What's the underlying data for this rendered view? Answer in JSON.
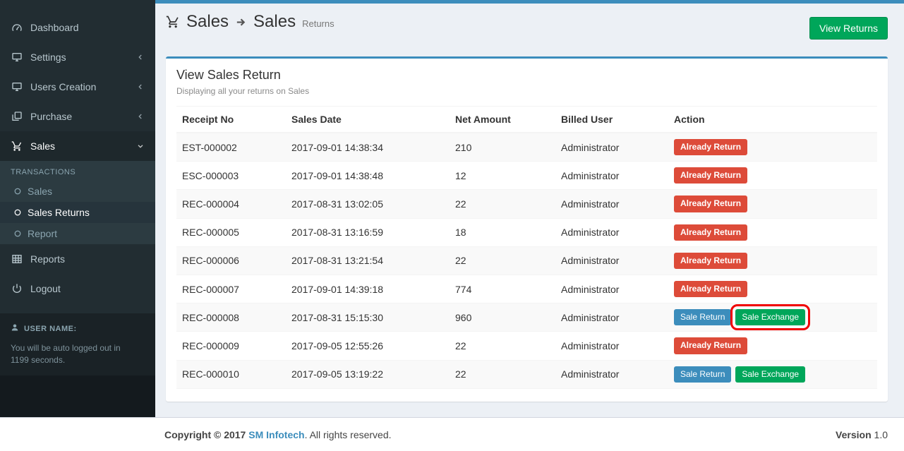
{
  "sidebar": {
    "items": [
      {
        "label": "Dashboard"
      },
      {
        "label": "Settings"
      },
      {
        "label": "Users Creation"
      },
      {
        "label": "Purchase"
      },
      {
        "label": "Sales"
      }
    ],
    "section_label": "TRANSACTIONS",
    "sub_items": [
      {
        "label": "Sales"
      },
      {
        "label": "Sales Returns"
      },
      {
        "label": "Report"
      }
    ],
    "extra_items": [
      {
        "label": "Reports"
      },
      {
        "label": "Logout"
      }
    ],
    "user_label": "USER NAME:",
    "auto_logout_notice": "You will be auto logged out in 1199 seconds."
  },
  "header": {
    "module": "Sales",
    "page": "Sales",
    "page_small": "Returns",
    "view_returns_label": "View Returns"
  },
  "panel": {
    "title": "View Sales Return",
    "subtitle": "Displaying all your returns on Sales"
  },
  "table": {
    "headers": [
      "Receipt No",
      "Sales Date",
      "Net Amount",
      "Billed User",
      "Action"
    ],
    "rows": [
      {
        "receipt_no": "EST-000002",
        "sales_date": "2017-09-01 14:38:34",
        "net_amount": "210",
        "billed_user": "Administrator",
        "actions": [
          {
            "label": "Already Return",
            "style": "danger"
          }
        ]
      },
      {
        "receipt_no": "ESC-000003",
        "sales_date": "2017-09-01 14:38:48",
        "net_amount": "12",
        "billed_user": "Administrator",
        "actions": [
          {
            "label": "Already Return",
            "style": "danger"
          }
        ]
      },
      {
        "receipt_no": "REC-000004",
        "sales_date": "2017-08-31 13:02:05",
        "net_amount": "22",
        "billed_user": "Administrator",
        "actions": [
          {
            "label": "Already Return",
            "style": "danger"
          }
        ]
      },
      {
        "receipt_no": "REC-000005",
        "sales_date": "2017-08-31 13:16:59",
        "net_amount": "18",
        "billed_user": "Administrator",
        "actions": [
          {
            "label": "Already Return",
            "style": "danger"
          }
        ]
      },
      {
        "receipt_no": "REC-000006",
        "sales_date": "2017-08-31 13:21:54",
        "net_amount": "22",
        "billed_user": "Administrator",
        "actions": [
          {
            "label": "Already Return",
            "style": "danger"
          }
        ]
      },
      {
        "receipt_no": "REC-000007",
        "sales_date": "2017-09-01 14:39:18",
        "net_amount": "774",
        "billed_user": "Administrator",
        "actions": [
          {
            "label": "Already Return",
            "style": "danger"
          }
        ]
      },
      {
        "receipt_no": "REC-000008",
        "sales_date": "2017-08-31 15:15:30",
        "net_amount": "960",
        "billed_user": "Administrator",
        "actions": [
          {
            "label": "Sale Return",
            "style": "primary"
          },
          {
            "label": "Sale Exchange",
            "style": "success",
            "highlighted": true
          }
        ]
      },
      {
        "receipt_no": "REC-000009",
        "sales_date": "2017-09-05 12:55:26",
        "net_amount": "22",
        "billed_user": "Administrator",
        "actions": [
          {
            "label": "Already Return",
            "style": "danger"
          }
        ]
      },
      {
        "receipt_no": "REC-000010",
        "sales_date": "2017-09-05 13:19:22",
        "net_amount": "22",
        "billed_user": "Administrator",
        "actions": [
          {
            "label": "Sale Return",
            "style": "primary"
          },
          {
            "label": "Sale Exchange",
            "style": "success"
          }
        ]
      }
    ]
  },
  "footer": {
    "copyright": "Copyright © 2017",
    "company": "SM Infotech",
    "rights": ". All rights reserved.",
    "version_label": "Version",
    "version_value": "1.0"
  },
  "colors": {
    "accent": "#3c8dbc",
    "success": "#00a65a",
    "danger": "#dd4b39",
    "annotation_highlight": "#f00000",
    "sidebar_bg": "#222d32"
  }
}
